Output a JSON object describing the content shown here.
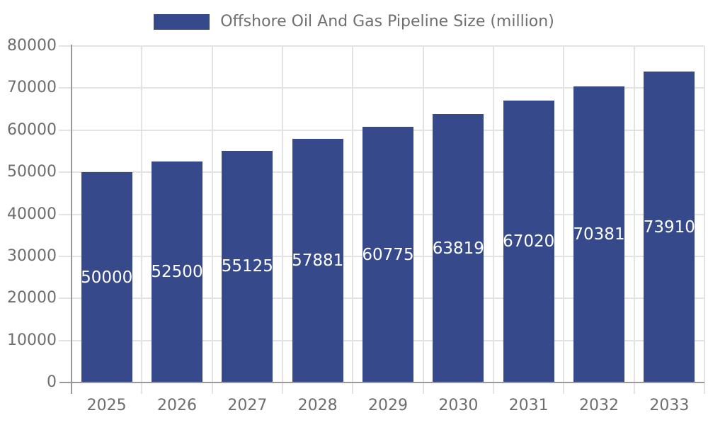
{
  "chart_data": {
    "type": "bar",
    "title": "",
    "xlabel": "",
    "ylabel": "",
    "categories": [
      "2025",
      "2026",
      "2027",
      "2028",
      "2029",
      "2030",
      "2031",
      "2032",
      "2033"
    ],
    "series": [
      {
        "name": "Offshore Oil And Gas Pipeline Size (million)",
        "values": [
          50000,
          52500,
          55125,
          57881,
          60775,
          63819,
          67020,
          70381,
          73910
        ]
      }
    ],
    "bar_value_labels_shown": true,
    "ylim": [
      0,
      80000
    ],
    "ytick_step": 10000,
    "ytick_labels": [
      "0",
      "10000",
      "20000",
      "30000",
      "40000",
      "50000",
      "60000",
      "70000",
      "80000"
    ],
    "grid": true,
    "legend_position": "top-center",
    "colors": {
      "bar": "#36498A",
      "grid": "#e3e3e3",
      "axis": "#999999",
      "tick_text": "#6e6e6e",
      "legend_text": "#6d6f72",
      "bar_label_text": "#ffffff",
      "background": "#ffffff"
    }
  }
}
